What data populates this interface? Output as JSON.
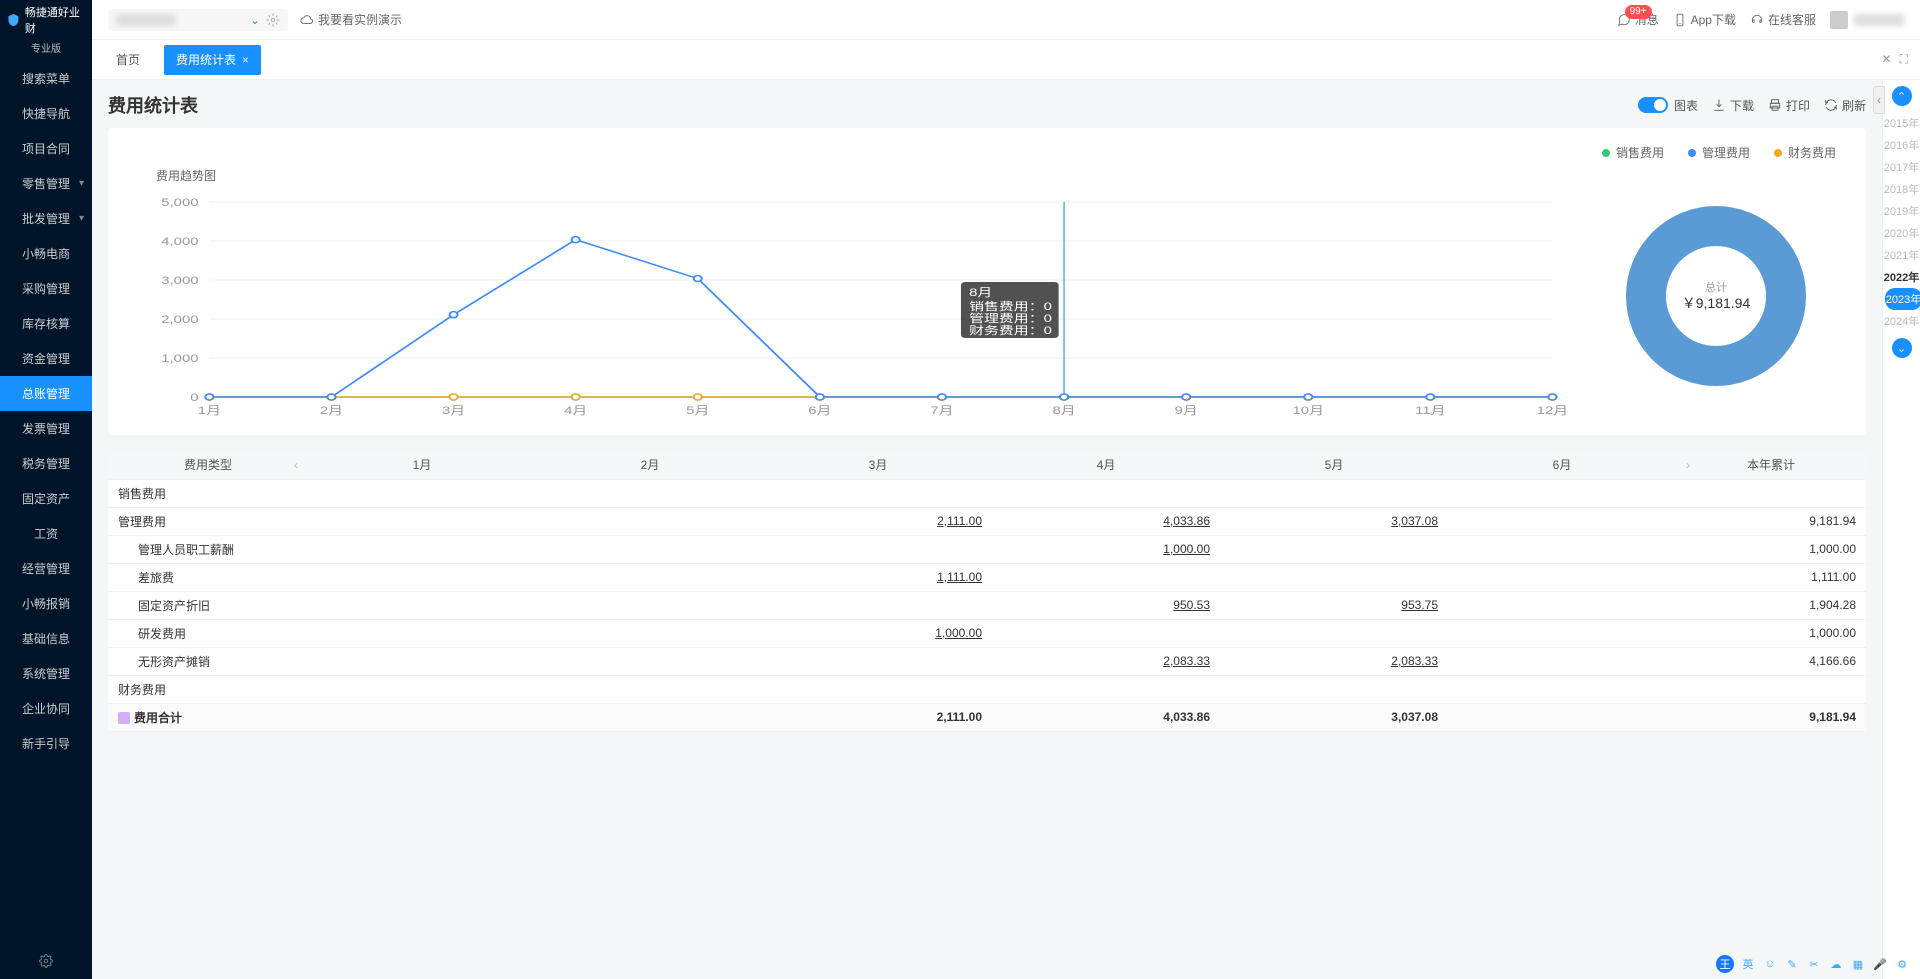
{
  "brand": {
    "name": "畅捷通好业财",
    "edition": "专业版"
  },
  "topbar": {
    "demo_link": "我要看实例演示",
    "messages_label": "消息",
    "messages_badge": "99+",
    "app_download": "App下载",
    "support": "在线客服"
  },
  "sidebar": {
    "items": [
      {
        "label": "搜索菜单"
      },
      {
        "label": "快捷导航"
      },
      {
        "label": "项目合同"
      },
      {
        "label": "零售管理",
        "expandable": true
      },
      {
        "label": "批发管理",
        "expandable": true
      },
      {
        "label": "小畅电商"
      },
      {
        "label": "采购管理"
      },
      {
        "label": "库存核算"
      },
      {
        "label": "资金管理"
      },
      {
        "label": "总账管理",
        "active": true
      },
      {
        "label": "发票管理"
      },
      {
        "label": "税务管理"
      },
      {
        "label": "固定资产"
      },
      {
        "label": "工资"
      },
      {
        "label": "经营管理"
      },
      {
        "label": "小畅报销"
      },
      {
        "label": "基础信息"
      },
      {
        "label": "系统管理"
      },
      {
        "label": "企业协同"
      },
      {
        "label": "新手引导"
      }
    ]
  },
  "tabs": {
    "home": "首页",
    "active": "费用统计表"
  },
  "page": {
    "title": "费用统计表",
    "toolbar": {
      "chart_toggle_label": "图表",
      "download": "下载",
      "print": "打印",
      "refresh": "刷新"
    }
  },
  "chart": {
    "title": "费用趋势图",
    "legend": [
      {
        "label": "销售费用",
        "color": "#2ecc71"
      },
      {
        "label": "管理费用",
        "color": "#3d8bfd"
      },
      {
        "label": "财务费用",
        "color": "#f5a623"
      }
    ],
    "x_labels": [
      "1月",
      "2月",
      "3月",
      "4月",
      "5月",
      "6月",
      "7月",
      "8月",
      "9月",
      "10月",
      "11月",
      "12月"
    ],
    "y_ticks": [
      0,
      1000,
      2000,
      3000,
      4000,
      5000
    ],
    "y_tick_labels": [
      "0",
      "1,000",
      "2,000",
      "3,000",
      "4,000",
      "5,000"
    ],
    "ylim": [
      0,
      5000
    ],
    "series": {
      "sales": [
        0,
        0,
        0,
        0,
        0,
        0,
        0,
        0,
        0,
        0,
        0,
        0
      ],
      "admin": [
        0,
        0,
        2111,
        4034,
        3037,
        0,
        0,
        0,
        0,
        0,
        0,
        0
      ],
      "finance": [
        0,
        0,
        0,
        0,
        0,
        0,
        0,
        0,
        0,
        0,
        0,
        0
      ]
    },
    "hover_index": 7,
    "tooltip": {
      "title": "8月",
      "rows": [
        "销售费用：0",
        "管理费用：0",
        "财务费用：0"
      ]
    },
    "grid_color": "#eeeeee",
    "axis_color": "#dddddd"
  },
  "donut": {
    "label": "总计",
    "value": "￥9,181.94",
    "colors": {
      "admin": "#5b9bd5",
      "ring_bg": "#5b9bd5"
    }
  },
  "year_rail": {
    "years": [
      "2015年",
      "2016年",
      "2017年",
      "2018年",
      "2019年",
      "2020年",
      "2021年",
      "2022年",
      "2023年",
      "2024年"
    ],
    "bold_index": 7,
    "active_index": 8
  },
  "table": {
    "type_header": "费用类型",
    "months_shown": [
      "1月",
      "2月",
      "3月",
      "4月",
      "5月",
      "6月"
    ],
    "total_header": "本年累计",
    "rows": [
      {
        "label": "销售费用",
        "cells": [
          "",
          "",
          "",
          "",
          "",
          ""
        ],
        "total": "",
        "cat": true
      },
      {
        "label": "管理费用",
        "cells": [
          "",
          "",
          "2,111.00",
          "4,033.86",
          "3,037.08",
          ""
        ],
        "total": "9,181.94",
        "link": true,
        "cat": true
      },
      {
        "label": "管理人员职工薪酬",
        "cells": [
          "",
          "",
          "",
          "1,000.00",
          "",
          ""
        ],
        "total": "1,000.00",
        "link": true,
        "indent": 1
      },
      {
        "label": "差旅费",
        "cells": [
          "",
          "",
          "1,111.00",
          "",
          "",
          ""
        ],
        "total": "1,111.00",
        "link": true,
        "indent": 1
      },
      {
        "label": "固定资产折旧",
        "cells": [
          "",
          "",
          "",
          "950.53",
          "953.75",
          ""
        ],
        "total": "1,904.28",
        "link": true,
        "indent": 1
      },
      {
        "label": "研发费用",
        "cells": [
          "",
          "",
          "1,000.00",
          "",
          "",
          ""
        ],
        "total": "1,000.00",
        "link": true,
        "indent": 1
      },
      {
        "label": "无形资产摊销",
        "cells": [
          "",
          "",
          "",
          "2,083.33",
          "2,083.33",
          ""
        ],
        "total": "4,166.66",
        "link": true,
        "indent": 1
      },
      {
        "label": "财务费用",
        "cells": [
          "",
          "",
          "",
          "",
          "",
          ""
        ],
        "total": "",
        "cat": true
      }
    ],
    "total_row": {
      "label": "费用合计",
      "cells": [
        "",
        "",
        "2,111.00",
        "4,033.86",
        "3,037.08",
        ""
      ],
      "total": "9,181.94"
    }
  }
}
